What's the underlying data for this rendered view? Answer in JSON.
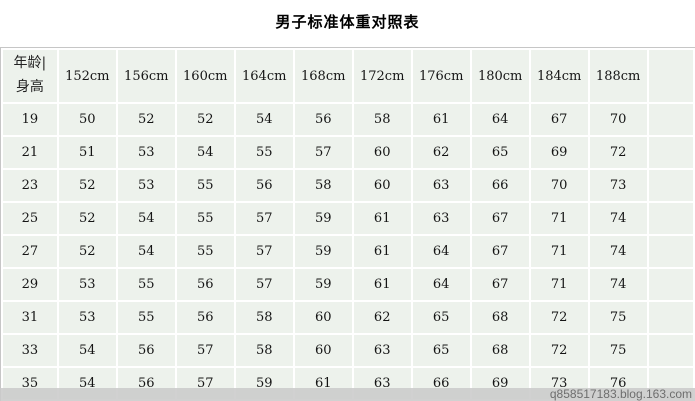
{
  "title": "男子标准体重对照表",
  "watermark": "q858517183.blog.163.com",
  "colors": {
    "cell_bg": "#edf2ec",
    "cell_gap": "#ffffff",
    "table_border": "#c6c6c6",
    "text": "#151515",
    "title_text": "#000000",
    "watermark_bg": "#cbcbcb",
    "watermark_text": "#6e6e6e"
  },
  "chart_data": {
    "type": "table",
    "title": "男子标准体重对照表",
    "corner_header": "年龄|身高",
    "columns": [
      "152cm",
      "156cm",
      "160cm",
      "164cm",
      "168cm",
      "172cm",
      "176cm",
      "180cm",
      "184cm",
      "188cm"
    ],
    "rows": [
      {
        "age": "19",
        "values": [
          50,
          52,
          52,
          54,
          56,
          58,
          61,
          64,
          67,
          70
        ]
      },
      {
        "age": "21",
        "values": [
          51,
          53,
          54,
          55,
          57,
          60,
          62,
          65,
          69,
          72
        ]
      },
      {
        "age": "23",
        "values": [
          52,
          53,
          55,
          56,
          58,
          60,
          63,
          66,
          70,
          73
        ]
      },
      {
        "age": "25",
        "values": [
          52,
          54,
          55,
          57,
          59,
          61,
          63,
          67,
          71,
          74
        ]
      },
      {
        "age": "27",
        "values": [
          52,
          54,
          55,
          57,
          59,
          61,
          64,
          67,
          71,
          74
        ]
      },
      {
        "age": "29",
        "values": [
          53,
          55,
          56,
          57,
          59,
          61,
          64,
          67,
          71,
          74
        ]
      },
      {
        "age": "31",
        "values": [
          53,
          55,
          56,
          58,
          60,
          62,
          65,
          68,
          72,
          75
        ]
      },
      {
        "age": "33",
        "values": [
          54,
          56,
          57,
          58,
          60,
          63,
          65,
          68,
          72,
          75
        ]
      },
      {
        "age": "35",
        "values": [
          54,
          56,
          57,
          59,
          61,
          63,
          66,
          69,
          73,
          76
        ]
      }
    ]
  }
}
